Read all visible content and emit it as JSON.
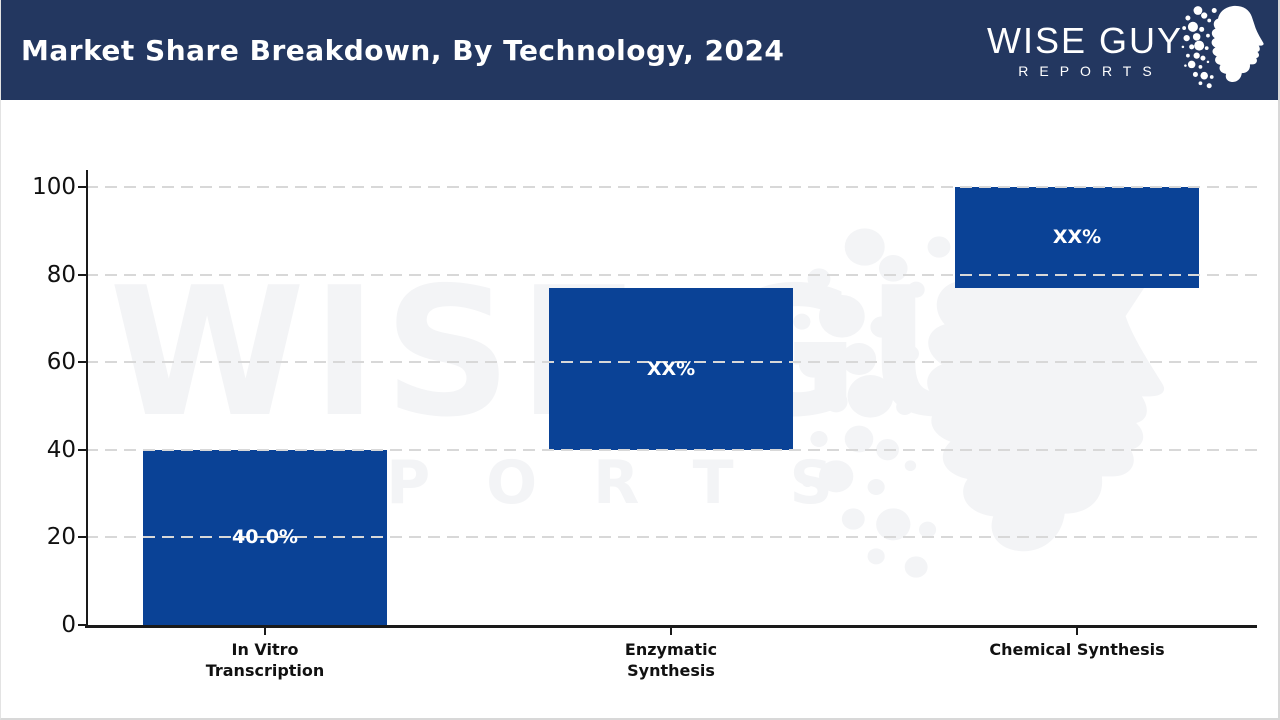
{
  "header": {
    "title": "Market Share Breakdown, By Technology, 2024",
    "logo": {
      "line1": "WISE GUY",
      "line2": "REPORTS"
    }
  },
  "watermark": {
    "line1": "WISE GUY",
    "line2": "REPORTS"
  },
  "chart_data": {
    "type": "bar",
    "subtype": "floating-waterfall",
    "title": "Market Share Breakdown, By Technology, 2024",
    "categories": [
      "In Vitro\nTranscription",
      "Enzymatic\nSynthesis",
      "Chemical Synthesis"
    ],
    "bars": [
      {
        "category": "In Vitro Transcription",
        "start": 0,
        "end": 40,
        "value": 40,
        "label": "40.0%"
      },
      {
        "category": "Enzymatic Synthesis",
        "start": 40,
        "end": 77,
        "value": 37,
        "label": "XX%"
      },
      {
        "category": "Chemical Synthesis",
        "start": 77,
        "end": 100,
        "value": 23,
        "label": "XX%"
      }
    ],
    "xlabel": "",
    "ylabel": "",
    "ylim": [
      0,
      100
    ],
    "yticks": [
      0,
      20,
      40,
      60,
      80,
      100
    ],
    "grid": "horizontal-dashed",
    "legend": "none"
  },
  "colors": {
    "header_bg": "#233760",
    "bar": "#0a4296",
    "grid": "#d8d8d8",
    "axis": "#1a1a1a",
    "watermark": "#f3f4f6",
    "title_text": "#ffffff"
  }
}
